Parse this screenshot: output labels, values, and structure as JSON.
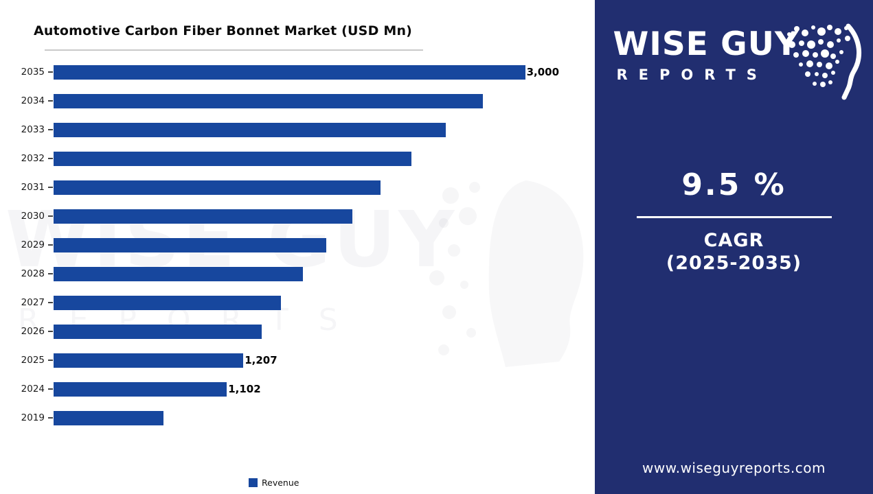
{
  "chart": {
    "title": "Automotive Carbon Fiber Bonnet Market (USD Mn)",
    "legend_label": "Revenue",
    "bar_color": "#17479E"
  },
  "chart_data": {
    "type": "bar",
    "orientation": "horizontal",
    "title": "Automotive Carbon Fiber Bonnet Market (USD Mn)",
    "xlabel": "",
    "ylabel": "",
    "xlim": [
      0,
      3000
    ],
    "grid": false,
    "legend_position": "bottom",
    "legend": [
      "Revenue"
    ],
    "categories": [
      "2035",
      "2034",
      "2033",
      "2032",
      "2031",
      "2030",
      "2029",
      "2028",
      "2027",
      "2026",
      "2025",
      "2024",
      "2019"
    ],
    "values": [
      3000,
      2732,
      2495,
      2278,
      2081,
      1900,
      1735,
      1585,
      1447,
      1322,
      1207,
      1102,
      700
    ],
    "value_labels": {
      "2035": "3,000",
      "2025": "1,207",
      "2024": "1,102"
    }
  },
  "watermark": {
    "line1": "WISE GUY",
    "line2": "REPORTS"
  },
  "panel": {
    "bg_color": "#212E70",
    "logo_line1": "WISE GUY",
    "logo_line2": "REPORTS",
    "cagr_value": "9.5 %",
    "cagr_label": "CAGR",
    "cagr_period": "(2025-2035)",
    "website": "www.wiseguyreports.com"
  }
}
